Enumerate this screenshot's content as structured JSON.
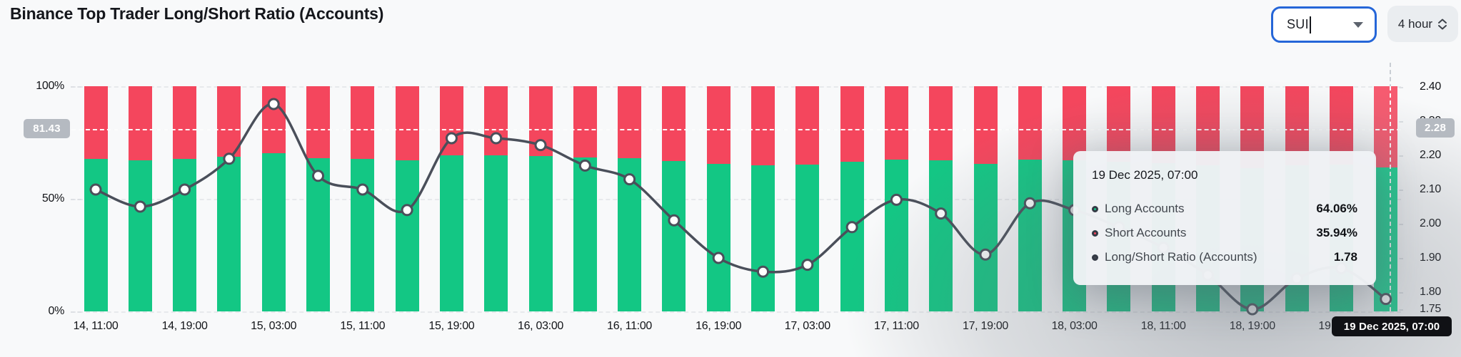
{
  "header": {
    "title": "Binance Top Trader Long/Short Ratio (Accounts)",
    "symbol_input": {
      "value": "SUI"
    },
    "interval_select": {
      "value": "4 hour"
    }
  },
  "crosshair": {
    "left_axis_badge": "81.43",
    "right_axis_badge": "2.28",
    "x_axis_tooltip": "19 Dec 2025, 07:00"
  },
  "tooltip": {
    "title": "19 Dec 2025, 07:00",
    "rows": [
      {
        "label": "Long Accounts",
        "value": "64.06%",
        "color": "#13C784"
      },
      {
        "label": "Short Accounts",
        "value": "35.94%",
        "color": "#F4465D"
      },
      {
        "label": "Long/Short Ratio (Accounts)",
        "value": "1.78",
        "color": "#40454F"
      }
    ]
  },
  "chart_data": {
    "type": "mixed",
    "subtype": "stacked-bar-with-line",
    "title": "Binance Top Trader Long/Short Ratio (Accounts)",
    "categories": [
      "14, 11:00",
      "14, 15:00",
      "14, 19:00",
      "14, 23:00",
      "15, 03:00",
      "15, 07:00",
      "15, 11:00",
      "15, 15:00",
      "15, 19:00",
      "15, 23:00",
      "16, 03:00",
      "16, 07:00",
      "16, 11:00",
      "16, 15:00",
      "16, 19:00",
      "16, 23:00",
      "17, 03:00",
      "17, 07:00",
      "17, 11:00",
      "17, 15:00",
      "17, 19:00",
      "17, 23:00",
      "18, 03:00",
      "18, 07:00",
      "18, 11:00",
      "18, 15:00",
      "18, 19:00",
      "18, 23:00",
      "19, 03:00",
      "19, 07:00"
    ],
    "x_tick_every": 2,
    "series": [
      {
        "name": "Long Accounts",
        "type": "bar",
        "stack": true,
        "unit": "%",
        "color": "#13C784",
        "values": [
          67.74,
          67.21,
          67.74,
          68.65,
          70.15,
          68.15,
          67.74,
          67.11,
          69.23,
          69.23,
          69.04,
          68.45,
          68.05,
          66.78,
          65.52,
          65.03,
          65.28,
          66.56,
          67.43,
          66.99,
          65.64,
          67.32,
          67.11,
          66.56,
          65.87,
          64.91,
          63.64,
          64.79,
          65.16,
          64.06
        ]
      },
      {
        "name": "Short Accounts",
        "type": "bar",
        "stack": true,
        "unit": "%",
        "color": "#F4465D",
        "values": [
          32.26,
          32.79,
          32.26,
          31.35,
          29.85,
          31.85,
          32.26,
          32.89,
          30.77,
          30.77,
          30.96,
          31.55,
          31.95,
          33.22,
          34.48,
          34.97,
          34.72,
          33.44,
          32.57,
          33.01,
          34.36,
          32.68,
          32.89,
          33.44,
          34.13,
          35.09,
          36.36,
          35.21,
          34.84,
          35.94
        ]
      },
      {
        "name": "Long/Short Ratio (Accounts)",
        "type": "line",
        "axis": "right",
        "color": "#4A4F5A",
        "values": [
          2.1,
          2.05,
          2.1,
          2.19,
          2.35,
          2.14,
          2.1,
          2.04,
          2.25,
          2.25,
          2.23,
          2.17,
          2.13,
          2.01,
          1.9,
          1.86,
          1.88,
          1.99,
          2.07,
          2.03,
          1.91,
          2.06,
          2.04,
          1.99,
          1.93,
          1.85,
          1.75,
          1.84,
          1.87,
          1.78
        ]
      }
    ],
    "left_axis": {
      "ticks": [
        "0%",
        "50%",
        "100%"
      ],
      "tick_values": [
        0,
        50,
        100
      ],
      "range": [
        0,
        100
      ]
    },
    "right_axis": {
      "ticks": [
        "1.75",
        "1.80",
        "1.90",
        "2.00",
        "2.10",
        "2.20",
        "2.30",
        "2.40"
      ],
      "tick_values": [
        1.75,
        1.8,
        1.9,
        2.0,
        2.1,
        2.2,
        2.3,
        2.4
      ],
      "range": [
        1.745,
        2.4
      ]
    },
    "grid": true,
    "legend_position": "none",
    "hovered_point": {
      "category": "19 Dec 2025, 07:00",
      "long": 64.06,
      "short": 35.94,
      "ratio": 1.78
    }
  }
}
